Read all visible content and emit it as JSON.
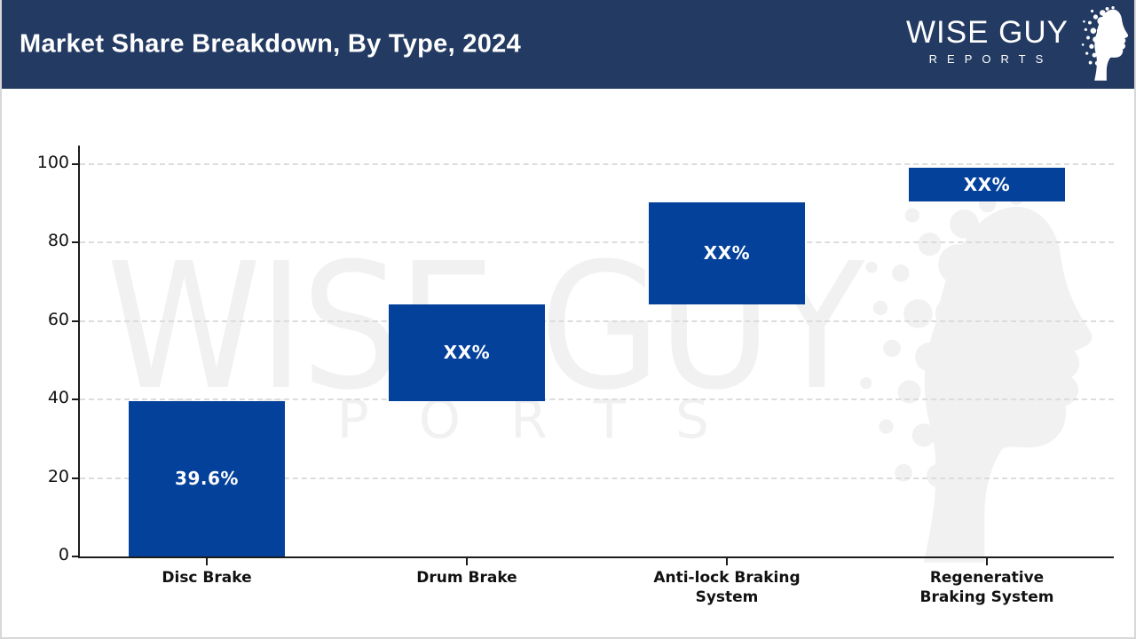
{
  "header": {
    "title": "Market Share Breakdown, By Type, 2024",
    "logo": {
      "name": "wise-guy-reports-logo",
      "line1": "WISE GUY",
      "line2": "REPORTS"
    }
  },
  "watermark": {
    "line1": "WISE GUY",
    "line2": "REPORTS"
  },
  "chart_data": {
    "type": "bar",
    "subtype": "waterfall",
    "title": "Market Share Breakdown, By Type, 2024",
    "categories": [
      "Disc Brake",
      "Drum Brake",
      "Anti-lock Braking System",
      "Regenerative Braking System"
    ],
    "category_lines": [
      [
        "Disc Brake"
      ],
      [
        "Drum Brake"
      ],
      [
        "Anti-lock Braking",
        "System"
      ],
      [
        "Regenerative",
        "Braking System"
      ]
    ],
    "segments": [
      {
        "category": "Disc Brake",
        "start": 0,
        "end": 39.6,
        "label": "39.6%"
      },
      {
        "category": "Drum Brake",
        "start": 39.6,
        "end": 64.2,
        "label": "XX%"
      },
      {
        "category": "Anti-lock Braking System",
        "start": 64.2,
        "end": 90.2,
        "label": "XX%"
      },
      {
        "category": "Regenerative Braking System",
        "start": 90.3,
        "end": 98.9,
        "label": "XX%"
      }
    ],
    "xlabel": "",
    "ylabel": "",
    "ylim": [
      0,
      100
    ],
    "yticks": [
      0,
      20,
      40,
      60,
      80,
      100
    ],
    "grid": "horizontal-dashed",
    "legend": "none",
    "colors": {
      "bar": "#04419B",
      "bar_label": "#FFFFFF",
      "axis": "#1C1C1C",
      "grid": "#DCDCDC",
      "tick_label": "#111111",
      "header_bg": "#233A63",
      "header_text": "#FFFFFF",
      "watermark": "#F1F1F2"
    }
  }
}
